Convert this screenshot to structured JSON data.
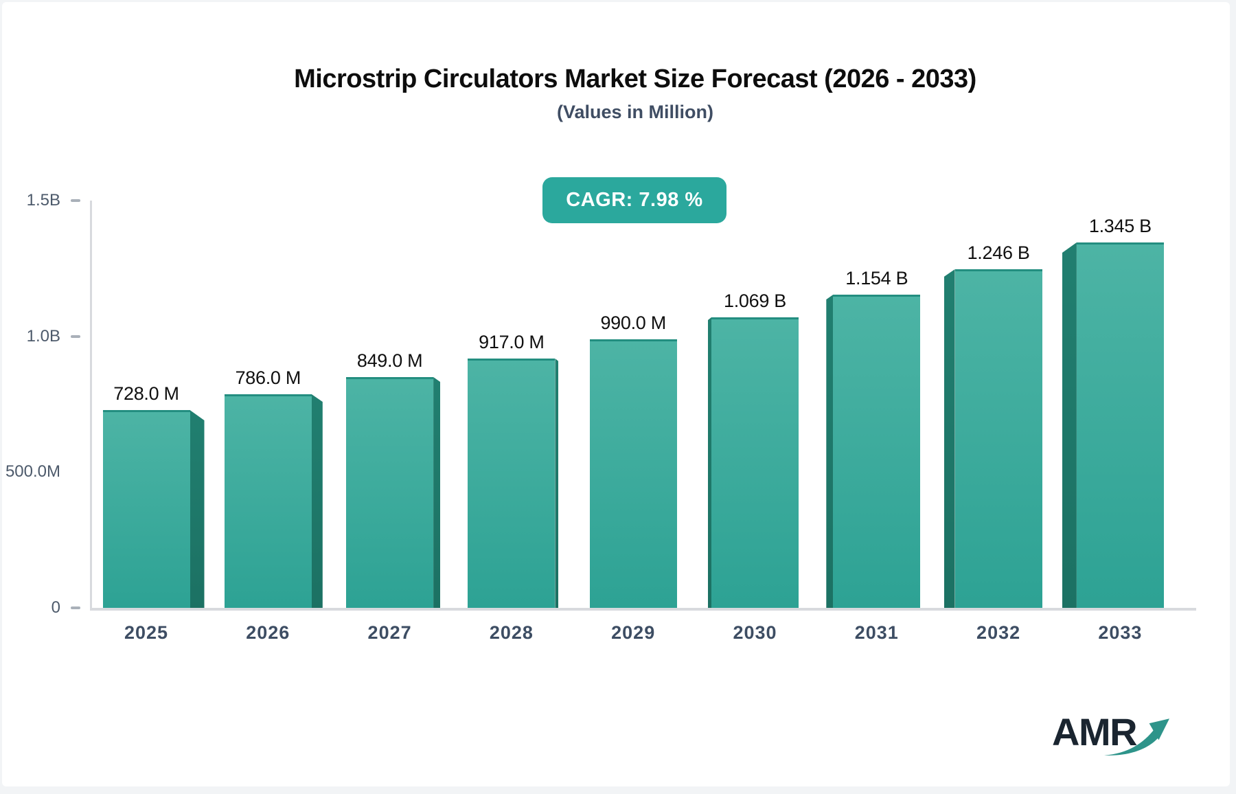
{
  "page": {
    "background": "#f2f4f6",
    "card_background": "#ffffff"
  },
  "header": {
    "title": "Microstrip Circulators Market Size Forecast (2026 - 2033)",
    "subtitle": "(Values in Million)"
  },
  "cagr_badge": {
    "label": "CAGR: 7.98 %",
    "background": "#2BA89D",
    "text_color": "#FFFFFF"
  },
  "chart_data": {
    "type": "bar",
    "title": "Microstrip Circulators Market Size Forecast (2026 - 2033)",
    "subtitle": "(Values in Million)",
    "cagr_percent": 7.98,
    "categories": [
      "2025",
      "2026",
      "2027",
      "2028",
      "2029",
      "2030",
      "2031",
      "2032",
      "2033"
    ],
    "values_millions": [
      728,
      786,
      849,
      917,
      990,
      1069,
      1154,
      1246,
      1345
    ],
    "value_labels": [
      "728.0 M",
      "786.0 M",
      "849.0 M",
      "917.0 M",
      "990.0 M",
      "1.069 B",
      "1.154 B",
      "1.246 B",
      "1.345 B"
    ],
    "ylim_millions": [
      0,
      1500
    ],
    "y_axis_ticks": [
      {
        "label": "1.5B",
        "value_millions": 1500,
        "dash": true
      },
      {
        "label": "1.0B",
        "value_millions": 1000,
        "dash": true
      },
      {
        "label": "500.0M",
        "value_millions": 500,
        "dash": false
      },
      {
        "label": "0",
        "value_millions": 0,
        "dash": true
      }
    ],
    "grid": false,
    "legend": false,
    "colors": {
      "bar_face_top": "#4DB4A5",
      "bar_face_bottom": "#2DA294",
      "bar_side": "#1F7B6D",
      "bar_top_edge": "#238E80",
      "axis_line": "#D8DADE",
      "tick": "#A9B0B9",
      "x_label": "#3D4D63",
      "y_label": "#4D5A6B",
      "value_label": "#101010"
    }
  },
  "logo": {
    "text": "AMR",
    "text_color": "#1A2530",
    "arrow_color": "#2E948A"
  }
}
